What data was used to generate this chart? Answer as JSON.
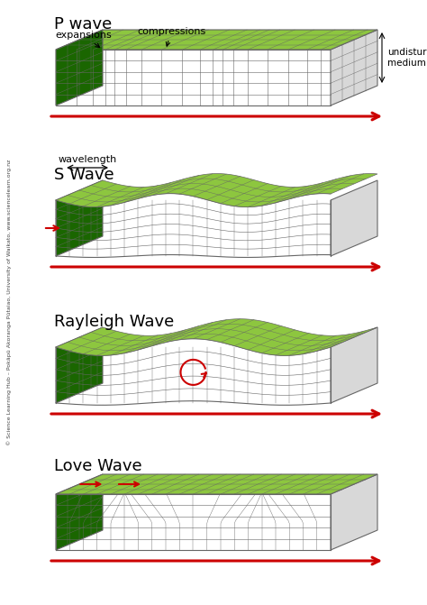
{
  "bg_color": "#ffffff",
  "green_top": "#8dc63f",
  "green_dark": "#2d7a00",
  "green_face": "#4a9900",
  "green_left_face": "#1a6600",
  "grid_color_dark": "#666666",
  "grid_color_light": "#aaaaaa",
  "red_arrow": "#cc0000",
  "black": "#000000",
  "watermark": "© Science Learning Hub – Pokāpū Akoranga Pūtaiao, University of Waikato, www.sciencelearn.org.nz",
  "titles": [
    "P wave",
    "S Wave",
    "Rayleigh Wave",
    "Love Wave"
  ],
  "fig_width": 4.74,
  "fig_height": 6.71,
  "dpi": 100
}
